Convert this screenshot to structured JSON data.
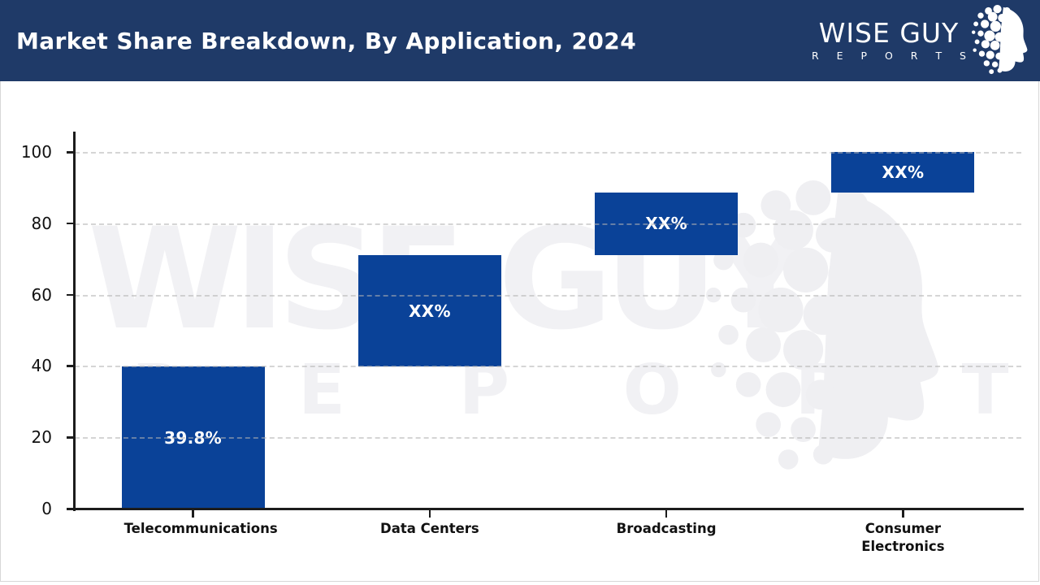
{
  "header": {
    "title": "Market Share Breakdown, By Application, 2024",
    "logo": {
      "line1": "WISE GUY",
      "line2": "R E P O R T S"
    }
  },
  "watermark": {
    "line1": "WISE GUY",
    "line2": "R E P O R T S"
  },
  "chart_data": {
    "type": "waterfall",
    "title": "Market Share Breakdown, By Application, 2024",
    "categories": [
      "Telecommunications",
      "Data Centers",
      "Broadcasting",
      "Consumer Electronics"
    ],
    "series": [
      {
        "name": "Telecommunications",
        "start": 0,
        "end": 39.8,
        "label": "39.8%"
      },
      {
        "name": "Data Centers",
        "start": 39.8,
        "end": 71.1,
        "label": "XX%"
      },
      {
        "name": "Broadcasting",
        "start": 71.1,
        "end": 88.6,
        "label": "XX%"
      },
      {
        "name": "Consumer Electronics",
        "start": 88.6,
        "end": 100,
        "label": "XX%"
      }
    ],
    "ylim": [
      0,
      100
    ],
    "yticks": [
      0,
      20,
      40,
      60,
      80,
      100
    ],
    "grid": "dashed-horizontal",
    "legend": "none",
    "bar_color": "#0a4298",
    "bar_label_color": "#ffffff"
  },
  "colors": {
    "header_bg": "#1f3a68",
    "bar": "#0a4298",
    "axis": "#1c1c1c",
    "grid": "#b2b2b2",
    "watermark": "#f1f1f4"
  }
}
